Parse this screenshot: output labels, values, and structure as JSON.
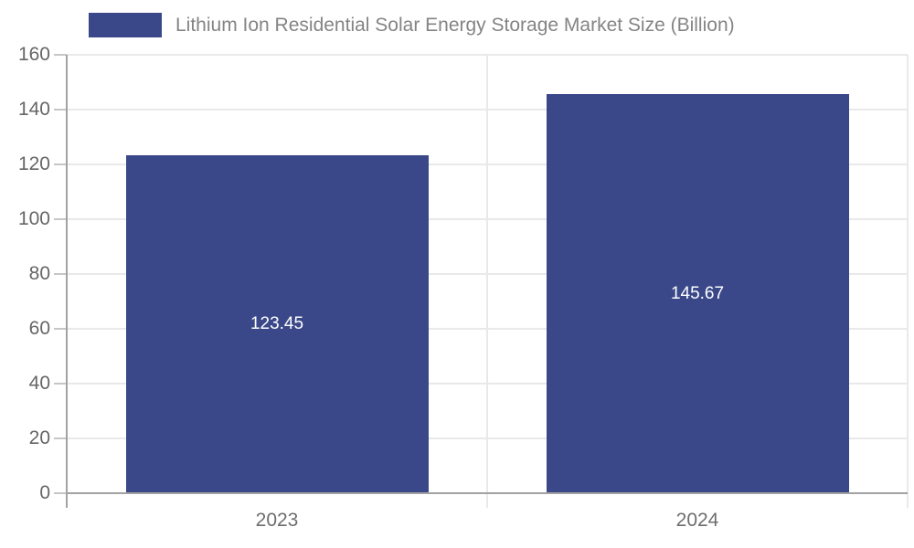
{
  "legend": {
    "label": "Lithium Ion Residential Solar Energy Storage Market Size (Billion)",
    "swatch_color": "#3a4889"
  },
  "chart_data": {
    "type": "bar",
    "title": "Lithium Ion Residential Solar Energy Storage Market Size (Billion)",
    "categories": [
      "2023",
      "2024"
    ],
    "series": [
      {
        "name": "Lithium Ion Residential Solar Energy Storage Market Size (Billion)",
        "values": [
          123.45,
          145.67
        ]
      }
    ],
    "value_labels": [
      "123.45",
      "145.67"
    ],
    "xlabel": "",
    "ylabel": "",
    "ylim": [
      0,
      160
    ],
    "yticks": [
      0,
      20,
      40,
      60,
      80,
      100,
      120,
      140,
      160
    ],
    "grid": true,
    "legend_position": "top-left",
    "colors": {
      "bar": "#3a4889",
      "value_label": "#ffffff",
      "gridline": "#e9e9e9",
      "axis_line": "#a2a2a2",
      "tick_text": "#666666",
      "legend_text": "#848484"
    }
  }
}
